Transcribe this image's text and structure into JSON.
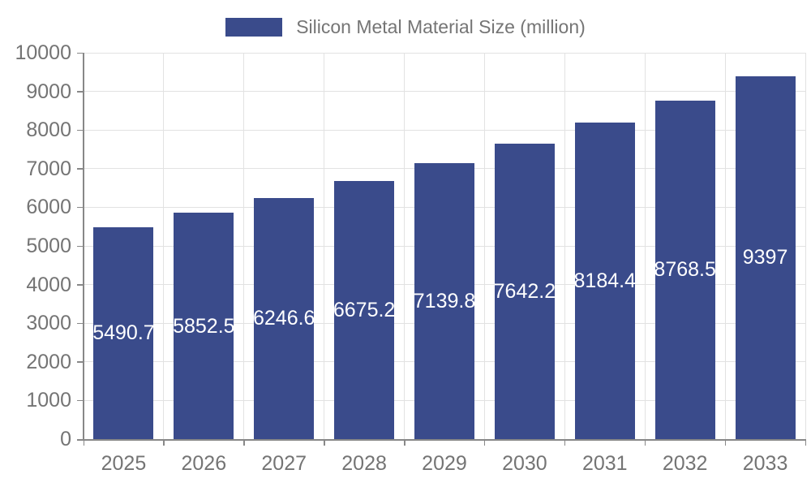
{
  "legend": {
    "label": "Silicon Metal Material Size (million)"
  },
  "chart_data": {
    "type": "bar",
    "title": "Silicon Metal Material Size (million)",
    "categories": [
      "2025",
      "2026",
      "2027",
      "2028",
      "2029",
      "2030",
      "2031",
      "2032",
      "2033"
    ],
    "values": [
      5490.7,
      5852.5,
      6246.6,
      6675.2,
      7139.8,
      7642.2,
      8184.4,
      8768.5,
      9397
    ],
    "value_labels": [
      "5490.7",
      "5852.5",
      "6246.6",
      "6675.2",
      "7139.8",
      "7642.2",
      "8184.4",
      "8768.5",
      "9397"
    ],
    "xlabel": "",
    "ylabel": "",
    "ylim": [
      0,
      10000
    ],
    "ytick_interval": 1000,
    "ytick_labels": [
      "0",
      "1000",
      "2000",
      "3000",
      "4000",
      "5000",
      "6000",
      "7000",
      "8000",
      "9000",
      "10000"
    ],
    "grid": true,
    "legend_position": "top-center",
    "series_name": "Silicon Metal Material Size (million)"
  },
  "colors": {
    "bar": "#3A4B8B",
    "axis_line": "#888888",
    "grid_line": "#E2E2E2",
    "tick_text": "#747474",
    "value_label_text": "#FFFFFF",
    "legend_text": "#757575",
    "background": "#FFFFFF"
  }
}
